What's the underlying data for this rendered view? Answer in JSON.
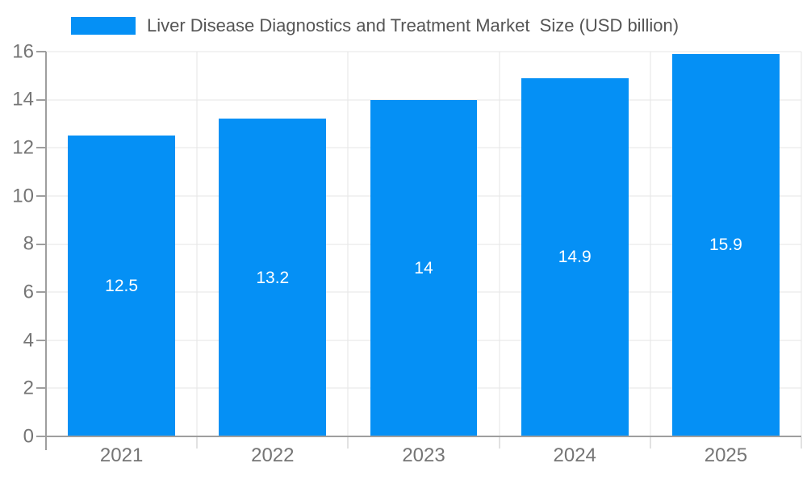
{
  "chart_data": {
    "type": "bar",
    "title": "Liver Disease Diagnostics and Treatment Market  Size (USD billion)",
    "categories": [
      "2021",
      "2022",
      "2023",
      "2024",
      "2025"
    ],
    "values": [
      12.5,
      13.2,
      14,
      14.9,
      15.9
    ],
    "value_labels": [
      "12.5",
      "13.2",
      "14",
      "14.9",
      "15.9"
    ],
    "xlabel": "",
    "ylabel": "",
    "ylim": [
      0,
      16
    ],
    "ytick_step": 2,
    "yticks": [
      0,
      2,
      4,
      6,
      8,
      10,
      12,
      14,
      16
    ],
    "legend_position": "top",
    "grid": true,
    "bar_width_fraction": 0.71,
    "colors": {
      "bar": "#0590f5",
      "value_label": "#ffffff",
      "axis_line": "#9e9e9e",
      "gridline": "#e6e6e6",
      "tick_label": "#757575",
      "legend_text": "#555555",
      "background": "#ffffff"
    }
  }
}
